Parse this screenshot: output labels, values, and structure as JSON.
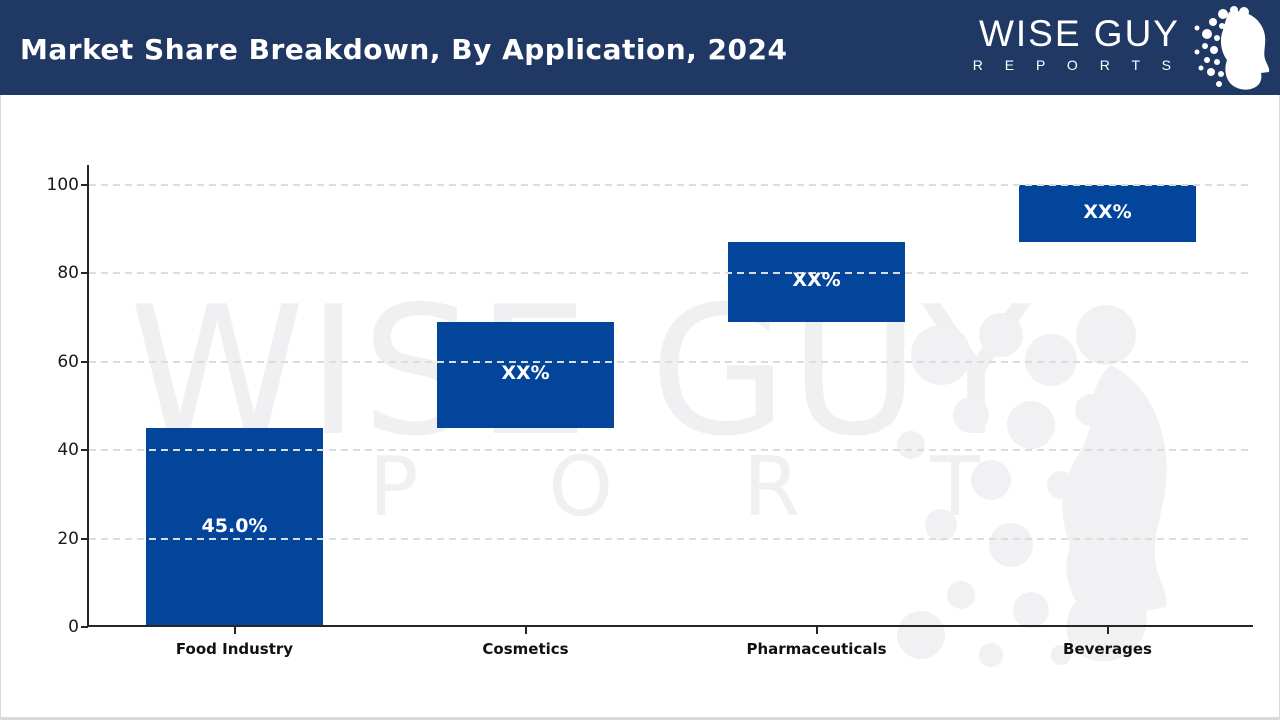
{
  "header": {
    "title": "Market Share Breakdown, By Application, 2024",
    "background_color": "#1f3864",
    "logo": {
      "line1": "WISE GUY",
      "line2": "R E P O R T S"
    }
  },
  "watermark": {
    "line1": "WISE GUY",
    "line2": "P O R T S"
  },
  "chart_data": {
    "type": "bar",
    "subtype": "waterfall",
    "title": "Market Share Breakdown, By Application, 2024",
    "categories": [
      "Food Industry",
      "Cosmetics",
      "Pharmaceuticals",
      "Beverages"
    ],
    "segments": [
      {
        "category": "Food Industry",
        "start": 0,
        "end": 45,
        "value": 45.0,
        "label": "45.0%"
      },
      {
        "category": "Cosmetics",
        "start": 45,
        "end": 69,
        "value": 24.0,
        "label": "XX%"
      },
      {
        "category": "Pharmaceuticals",
        "start": 69,
        "end": 87,
        "value": 18.0,
        "label": "XX%"
      },
      {
        "category": "Beverages",
        "start": 87,
        "end": 100,
        "value": 13.0,
        "label": "XX%"
      }
    ],
    "y_ticks": [
      0,
      20,
      40,
      60,
      80,
      100
    ],
    "ylim": [
      0,
      100
    ],
    "xlabel": "",
    "ylabel": "",
    "legend": "none",
    "grid": "horizontal-dashed-over-bars",
    "bar_color": "#04459c",
    "bar_label_color": "#ffffff",
    "axis_color": "#262626"
  }
}
